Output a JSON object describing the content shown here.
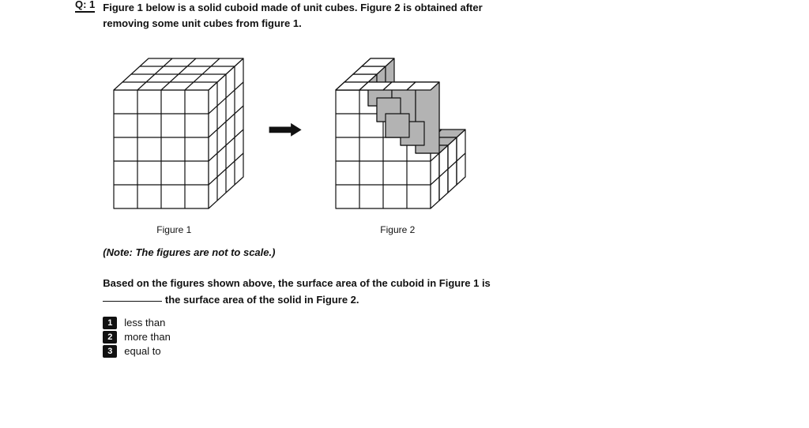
{
  "question": {
    "number": "Q: 1",
    "text1": "Figure 1 below is a solid cuboid made of unit cubes. Figure 2 is obtained after",
    "text2": "removing some unit cubes from figure 1.",
    "figure1_label": "Figure 1",
    "figure2_label": "Figure 2",
    "note": "(Note: The figures are not to scale.)",
    "prompt1": "Based on the figures shown above, the surface area of the cuboid in Figure 1 is",
    "prompt2": " the surface area of the solid in Figure 2."
  },
  "options": [
    {
      "num": "1",
      "label": "less than"
    },
    {
      "num": "2",
      "label": "more than"
    },
    {
      "num": "3",
      "label": "equal to"
    }
  ],
  "style": {
    "stroke": "#111111",
    "fill_light": "#ffffff",
    "fill_shade": "#b3b3b3",
    "fill_topshade": "#d9d9d9",
    "stroke_w": 1.2
  }
}
